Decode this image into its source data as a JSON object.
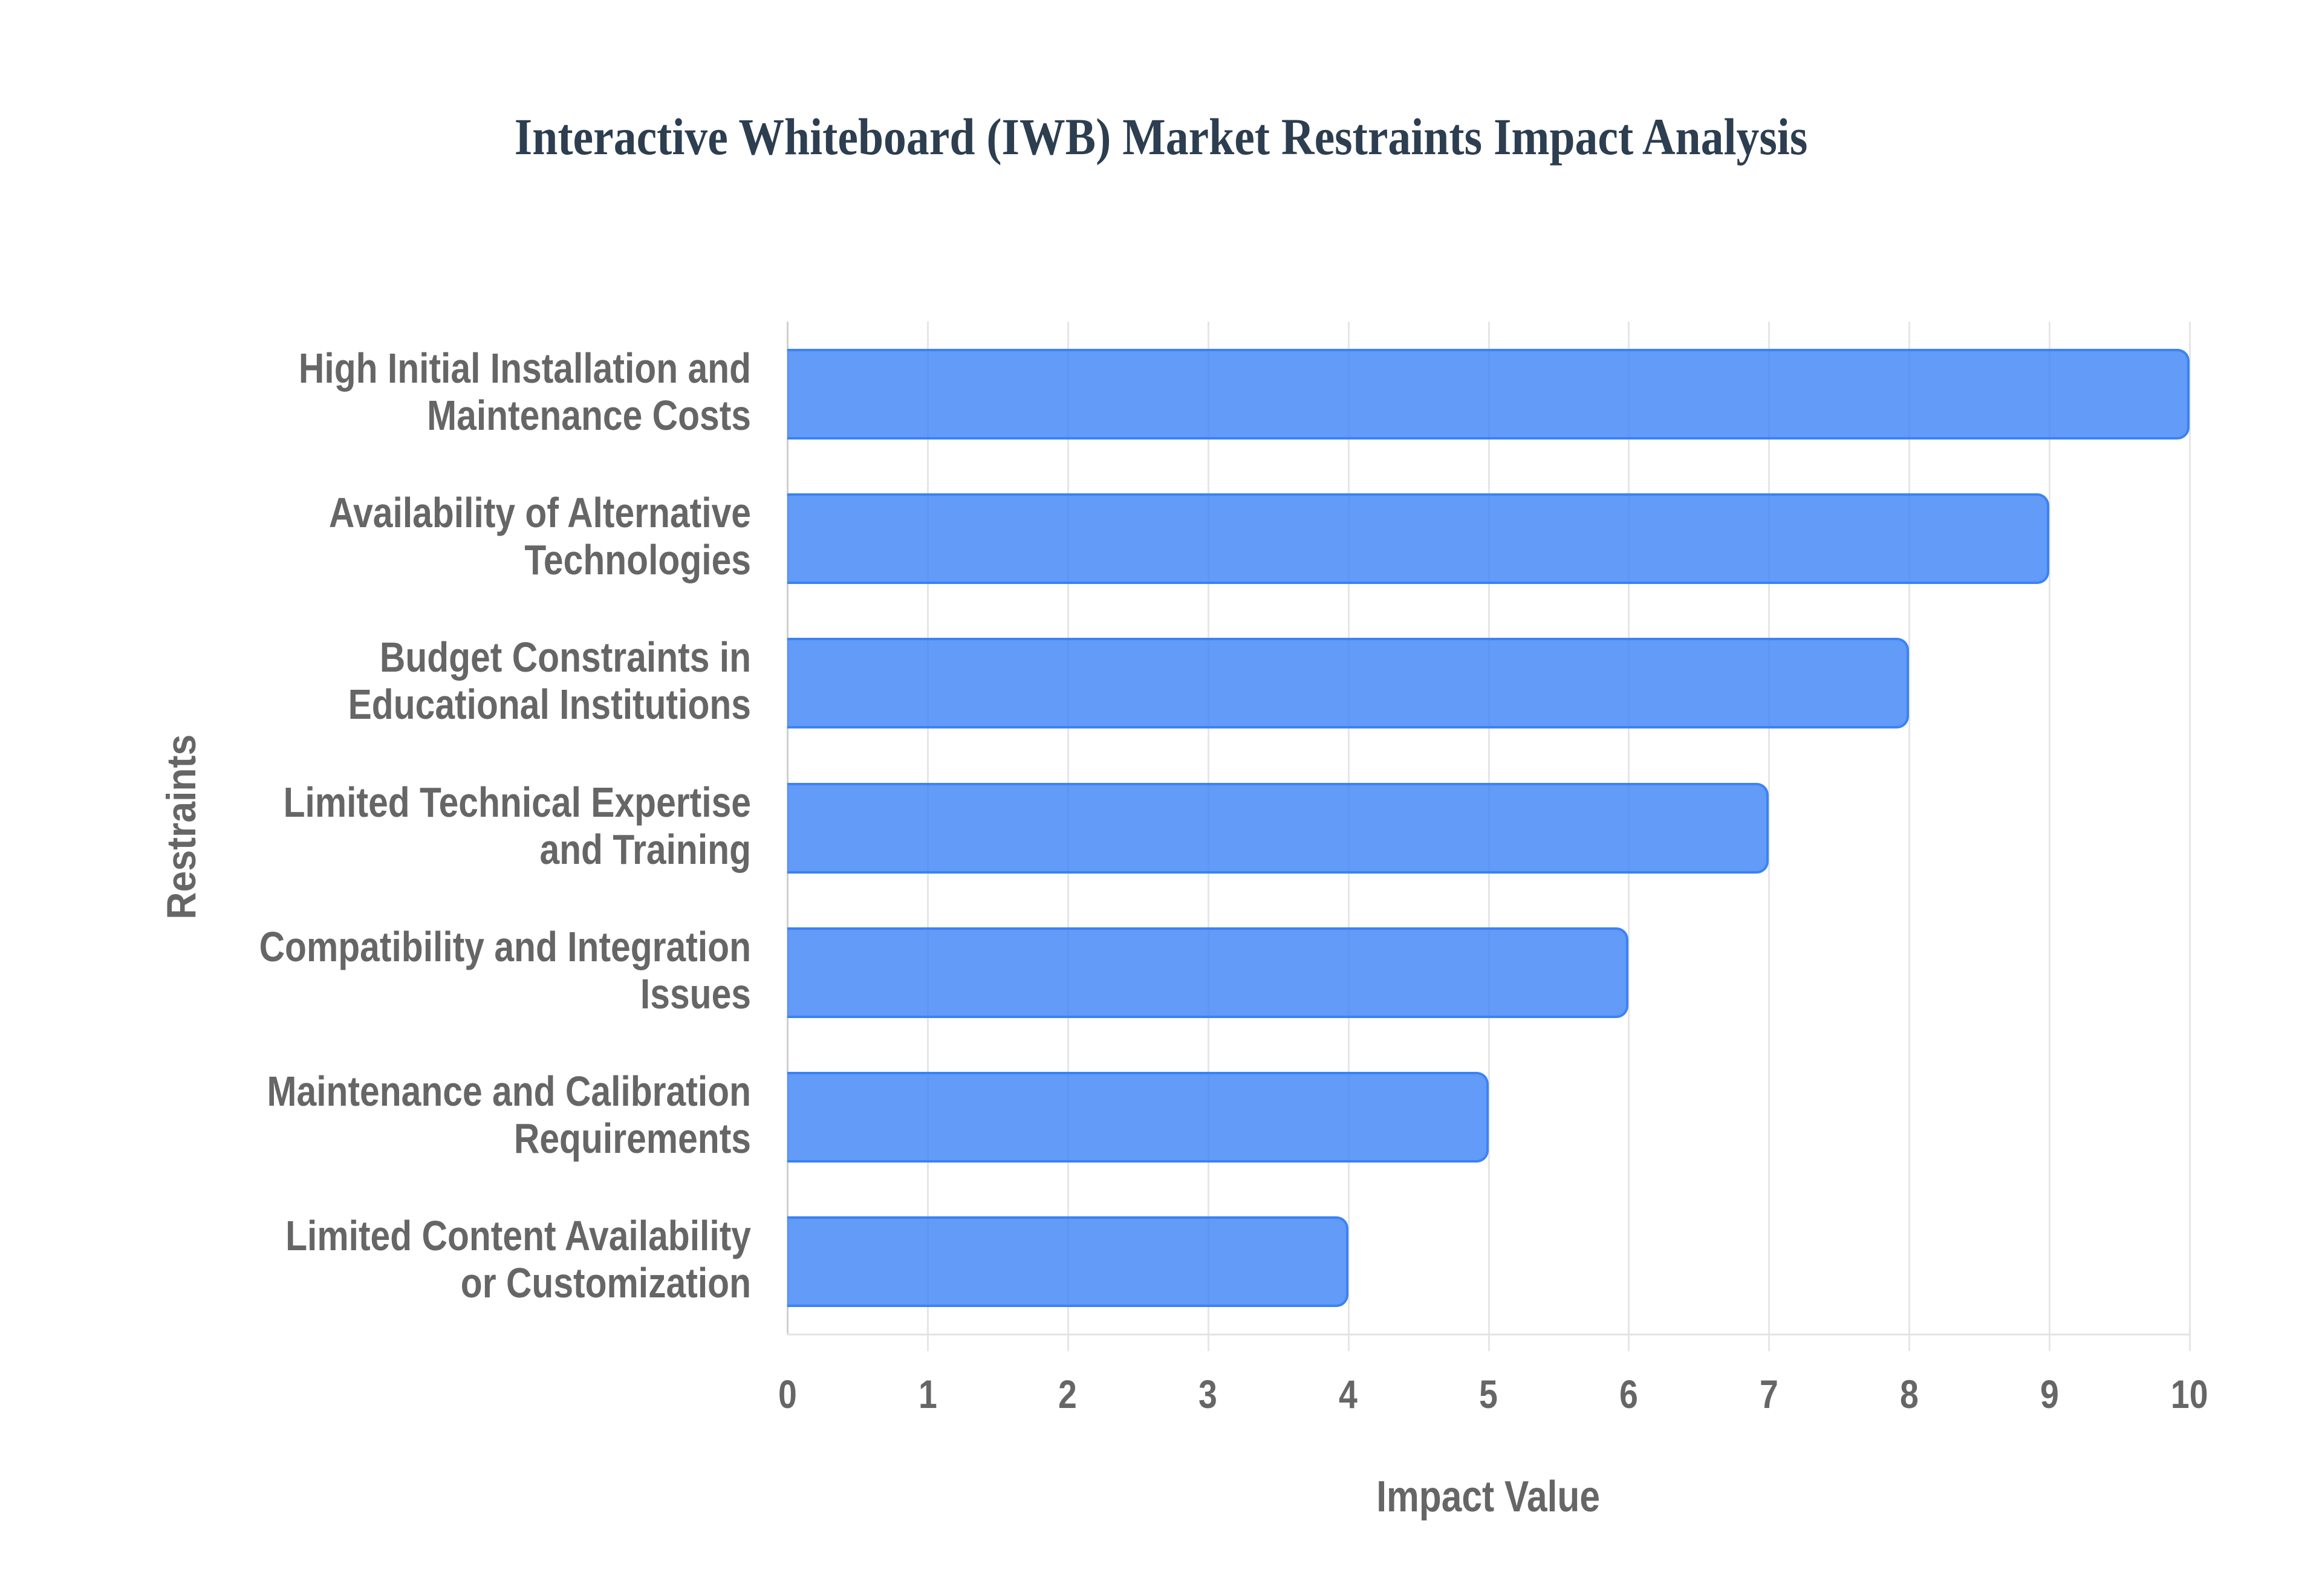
{
  "chart_data": {
    "type": "bar",
    "orientation": "horizontal",
    "title": "Interactive Whiteboard (IWB) Market Restraints Impact Analysis",
    "xlabel": "Impact Value",
    "ylabel": "Restraints",
    "xlim": [
      0,
      10
    ],
    "x_ticks": [
      "0",
      "1",
      "2",
      "3",
      "4",
      "5",
      "6",
      "7",
      "8",
      "9",
      "10"
    ],
    "grid": true,
    "legend": null,
    "categories": [
      "High Initial Installation and Maintenance Costs",
      "Availability of Alternative Technologies",
      "Budget Constraints in Educational Institutions",
      "Limited Technical Expertise and Training",
      "Compatibility and Integration Issues",
      "Maintenance and Calibration Requirements",
      "Limited Content Availability or Customization"
    ],
    "category_label_lines": [
      [
        "High Initial Installation and",
        "Maintenance Costs"
      ],
      [
        "Availability of Alternative",
        "Technologies"
      ],
      [
        "Budget Constraints in",
        "Educational Institutions"
      ],
      [
        "Limited Technical Expertise",
        "and Training"
      ],
      [
        "Compatibility and Integration",
        "Issues"
      ],
      [
        "Maintenance and Calibration",
        "Requirements"
      ],
      [
        "Limited Content Availability",
        "or Customization"
      ]
    ],
    "values": [
      10,
      9,
      8,
      7,
      6,
      5,
      4
    ],
    "colors": {
      "bar_fill": "#6299f8",
      "bar_border": "#3b82f6",
      "title": "#2c3e50",
      "axis_text": "#666666",
      "grid": "#e6e6e6"
    }
  }
}
